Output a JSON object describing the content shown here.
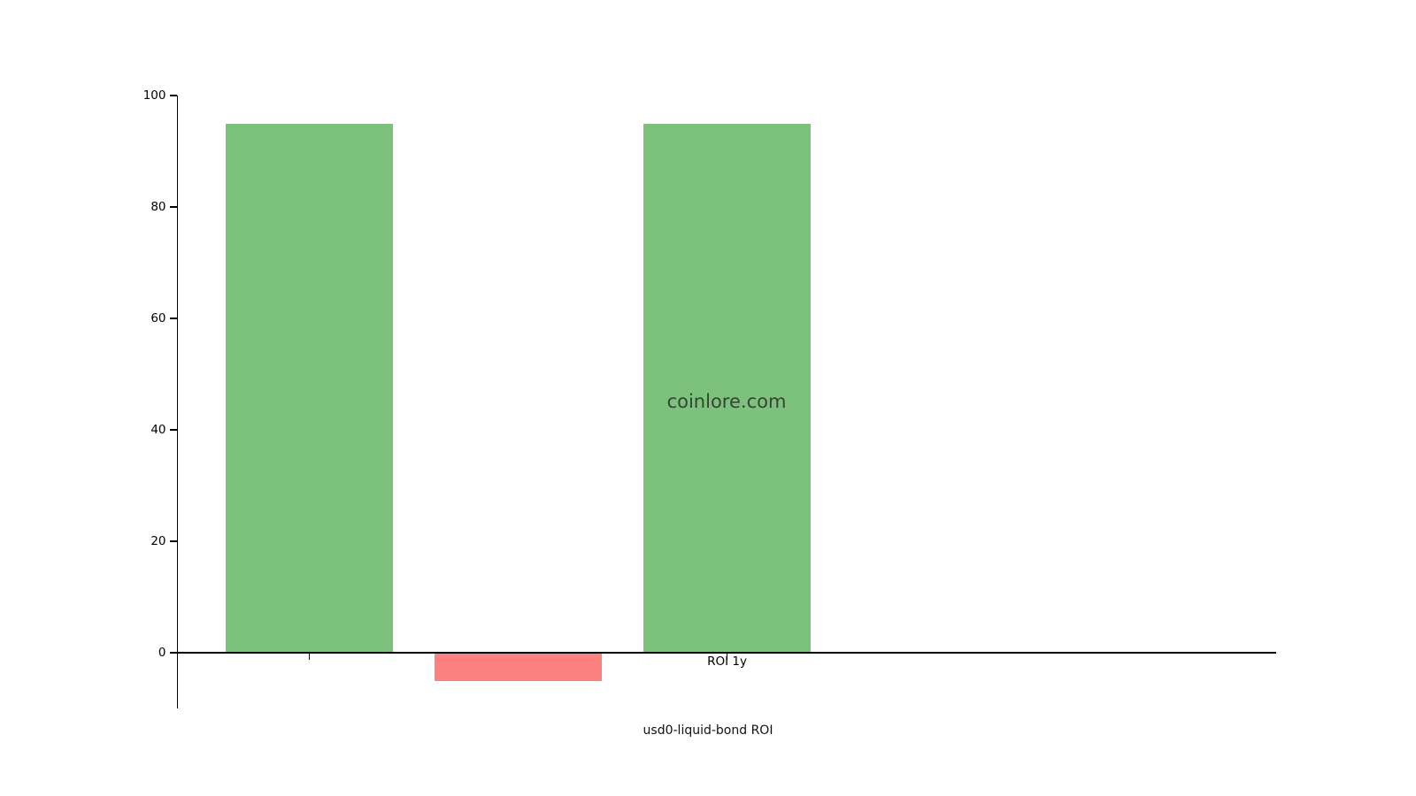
{
  "figure": {
    "background": "#ffffff",
    "title": "usd0-liquid-bond ROI",
    "watermark": "coinlore.com"
  },
  "chart_data": {
    "type": "bar",
    "title": "usd0-liquid-bond ROI",
    "watermark": "coinlore.com",
    "x": [
      0,
      1,
      2
    ],
    "categories": [
      "",
      "",
      "ROI 1y"
    ],
    "values": [
      95,
      -5,
      95
    ],
    "bar_colors": [
      "#7cc17c",
      "#fd8181",
      "#7cc17c"
    ],
    "color_positive": "#7cc17c",
    "color_negative": "#fd8181",
    "bar_width": 0.8,
    "xlim": [
      -0.63,
      4.63
    ],
    "ylim": [
      -10,
      100
    ],
    "yticks": [
      0,
      20,
      40,
      60,
      80,
      100
    ],
    "xticks": [
      0,
      1,
      2
    ],
    "xlabel": "",
    "ylabel": "",
    "grid": false,
    "legend": false,
    "axis_color": "#000000"
  }
}
